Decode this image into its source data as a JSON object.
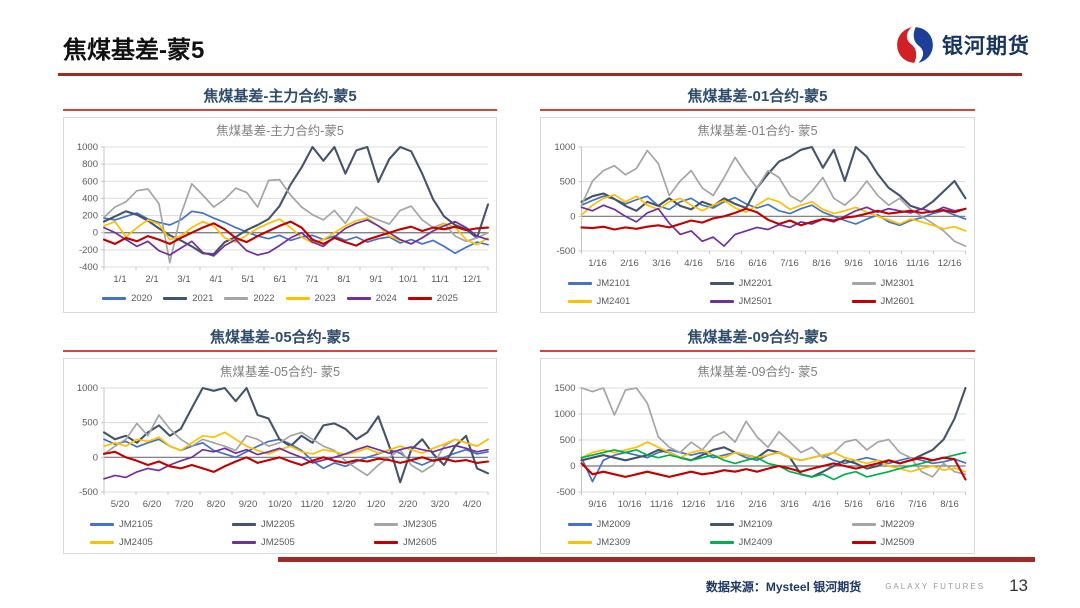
{
  "page": {
    "title": "焦煤基差-蒙5",
    "logo_text": "银河期货",
    "footer": {
      "source": "数据来源：Mysteel 银河期货",
      "brand": "GALAXY FUTURES",
      "page_number": "13"
    }
  },
  "colors": {
    "rule_dark": "#9e2b27",
    "rule_bright": "#d5463a",
    "header_navy": "#2f4d6a",
    "footer_navy": "#1f3864",
    "grid": "#dcdcdc",
    "axis": "#c4c4c4",
    "zero_line": "#737373",
    "tick_text": "#595959"
  },
  "chart_data": [
    {
      "type": "line",
      "panel_title": "焦煤基差-主力合约-蒙5",
      "inner_title": "焦煤基差-主力合约-蒙5",
      "y_min": -400,
      "y_max": 1000,
      "y_ticks": [
        1000,
        800,
        600,
        400,
        200,
        0,
        -200,
        -400
      ],
      "x_labels": [
        "1/1",
        "2/1",
        "3/1",
        "4/1",
        "5/1",
        "6/1",
        "7/1",
        "8/1",
        "9/1",
        "10/1",
        "11/1",
        "12/1"
      ],
      "legend_rows": 1,
      "series": [
        {
          "name": "2020",
          "color": "#4472C4",
          "values": [
            170,
            150,
            190,
            230,
            160,
            120,
            90,
            150,
            250,
            230,
            170,
            120,
            60,
            10,
            -40,
            -70,
            -30,
            -90,
            -50,
            -30,
            -80,
            -40,
            -90,
            -50,
            -110,
            -70,
            -50,
            -120,
            -80,
            -130,
            -90,
            -160,
            -240,
            -170,
            -110,
            -140
          ]
        },
        {
          "name": "2021",
          "color": "#44546A",
          "values": [
            130,
            190,
            250,
            210,
            140,
            50,
            -30,
            -90,
            -160,
            -240,
            -250,
            -110,
            -50,
            30,
            90,
            160,
            310,
            560,
            760,
            1000,
            840,
            1000,
            690,
            960,
            1000,
            590,
            860,
            1000,
            950,
            690,
            390,
            190,
            90,
            40,
            -60,
            330
          ]
        },
        {
          "name": "2022",
          "color": "#A5A5A5",
          "values": [
            180,
            300,
            360,
            490,
            510,
            340,
            -350,
            210,
            570,
            440,
            300,
            390,
            520,
            470,
            300,
            610,
            620,
            440,
            300,
            210,
            150,
            260,
            110,
            300,
            200,
            150,
            100,
            260,
            310,
            150,
            60,
            110,
            -40,
            -100,
            -60,
            0
          ]
        },
        {
          "name": "2023",
          "color": "#FFC000",
          "values": [
            80,
            130,
            -50,
            60,
            150,
            100,
            -80,
            -40,
            60,
            130,
            80,
            -60,
            -110,
            -30,
            50,
            110,
            160,
            60,
            -50,
            -120,
            -80,
            0,
            80,
            140,
            170,
            80,
            -40,
            -90,
            -130,
            -60,
            20,
            110,
            60,
            -80,
            -140,
            -60
          ]
        },
        {
          "name": "2024",
          "color": "#7030A0",
          "values": [
            60,
            0,
            -80,
            -160,
            -100,
            -210,
            -260,
            -180,
            -100,
            -230,
            -270,
            -150,
            -80,
            -210,
            -260,
            -230,
            -150,
            -60,
            0,
            -110,
            -160,
            -50,
            50,
            110,
            150,
            80,
            0,
            -80,
            -130,
            -60,
            20,
            80,
            130,
            60,
            -40,
            -80
          ]
        },
        {
          "name": "2025",
          "color": "#C00000",
          "values": [
            -80,
            -130,
            -60,
            -100,
            -40,
            -80,
            -130,
            -60,
            0,
            60,
            110,
            40,
            -60,
            -110,
            -40,
            20,
            80,
            130,
            60,
            -80,
            -130,
            -60,
            -110,
            -150,
            -80,
            -40,
            0,
            40,
            70,
            20,
            60,
            40,
            70,
            30,
            50,
            60
          ]
        }
      ]
    },
    {
      "type": "line",
      "panel_title": "焦煤基差-01合约-蒙5",
      "inner_title": "焦煤基差-01合约- 蒙5",
      "y_min": -500,
      "y_max": 1000,
      "y_ticks": [
        1000,
        500,
        0,
        -500
      ],
      "x_labels": [
        "1/16",
        "2/16",
        "3/16",
        "4/16",
        "5/16",
        "6/16",
        "7/16",
        "8/16",
        "9/16",
        "10/16",
        "11/16",
        "12/16"
      ],
      "legend_rows": 2,
      "series": [
        {
          "name": "JM2101",
          "color": "#4472C4",
          "values": [
            160,
            230,
            290,
            250,
            180,
            240,
            290,
            150,
            100,
            210,
            260,
            160,
            120,
            210,
            270,
            180,
            120,
            170,
            80,
            40,
            110,
            160,
            60,
            0,
            -60,
            -110,
            -40,
            20,
            -80,
            -130,
            -60,
            -20,
            40,
            80,
            20,
            -40
          ]
        },
        {
          "name": "JM2201",
          "color": "#44546A",
          "values": [
            210,
            290,
            330,
            250,
            150,
            80,
            210,
            150,
            260,
            150,
            100,
            210,
            150,
            260,
            180,
            120,
            410,
            610,
            790,
            860,
            960,
            1000,
            700,
            960,
            510,
            1000,
            860,
            610,
            410,
            300,
            150,
            100,
            210,
            360,
            510,
            260
          ]
        },
        {
          "name": "JM2301",
          "color": "#A5A5A5",
          "values": [
            160,
            510,
            660,
            730,
            600,
            690,
            950,
            760,
            300,
            510,
            660,
            410,
            300,
            560,
            850,
            610,
            410,
            660,
            560,
            300,
            210,
            360,
            560,
            260,
            160,
            300,
            510,
            300,
            160,
            260,
            100,
            0,
            -100,
            -210,
            -360,
            -430
          ]
        },
        {
          "name": "JM2401",
          "color": "#FFC000",
          "values": [
            20,
            160,
            260,
            310,
            210,
            290,
            160,
            100,
            210,
            260,
            160,
            80,
            160,
            230,
            120,
            60,
            160,
            260,
            210,
            100,
            160,
            210,
            100,
            40,
            80,
            130,
            60,
            0,
            -50,
            -110,
            -40,
            -80,
            -130,
            -180,
            -150,
            -210
          ]
        },
        {
          "name": "JM2501",
          "color": "#7030A0",
          "values": [
            130,
            80,
            160,
            100,
            0,
            -80,
            50,
            110,
            -100,
            -260,
            -210,
            -360,
            -300,
            -430,
            -260,
            -210,
            -160,
            -190,
            -120,
            -160,
            -80,
            -110,
            -40,
            -80,
            0,
            80,
            130,
            60,
            110,
            80,
            50,
            110,
            60,
            130,
            80,
            110
          ]
        },
        {
          "name": "JM2601",
          "color": "#C00000",
          "values": [
            -160,
            -170,
            -150,
            -190,
            -160,
            -180,
            -150,
            -130,
            -160,
            -110,
            -60,
            -90,
            -30,
            0,
            50,
            110,
            60,
            -50,
            -110,
            -60,
            -130,
            -80,
            -40,
            -60,
            -20,
            0,
            40,
            80,
            40,
            60,
            80,
            50,
            70,
            90,
            60,
            110
          ]
        }
      ]
    },
    {
      "type": "line",
      "panel_title": "焦煤基差-05合约-蒙5",
      "inner_title": "焦煤基差-05合约- 蒙5",
      "y_min": -500,
      "y_max": 1000,
      "y_ticks": [
        1000,
        500,
        0,
        -500
      ],
      "x_labels": [
        "5/20",
        "6/20",
        "7/20",
        "8/20",
        "9/20",
        "10/20",
        "11/20",
        "12/20",
        "1/20",
        "2/20",
        "3/20",
        "4/20"
      ],
      "legend_rows": 2,
      "series": [
        {
          "name": "JM2105",
          "color": "#4472C4",
          "values": [
            260,
            190,
            230,
            150,
            210,
            260,
            160,
            100,
            160,
            210,
            100,
            50,
            0,
            80,
            160,
            230,
            260,
            190,
            100,
            -50,
            -160,
            -80,
            -130,
            -60,
            0,
            50,
            110,
            60,
            -50,
            -110,
            -40,
            0,
            60,
            110,
            50,
            80
          ]
        },
        {
          "name": "JM2205",
          "color": "#44546A",
          "values": [
            360,
            260,
            310,
            210,
            360,
            460,
            310,
            410,
            710,
            1000,
            960,
            1100,
            810,
            1060,
            610,
            560,
            260,
            160,
            310,
            210,
            460,
            490,
            410,
            260,
            360,
            590,
            160,
            -360,
            110,
            260,
            50,
            -110,
            160,
            310,
            -160,
            -230
          ]
        },
        {
          "name": "JM2305",
          "color": "#A5A5A5",
          "values": [
            50,
            160,
            260,
            490,
            310,
            610,
            410,
            260,
            160,
            260,
            210,
            160,
            100,
            310,
            260,
            160,
            210,
            310,
            360,
            260,
            160,
            100,
            -50,
            -160,
            -260,
            -110,
            0,
            110,
            -110,
            -210,
            -110,
            160,
            260,
            210,
            160,
            260
          ]
        },
        {
          "name": "JM2405",
          "color": "#FFC000",
          "values": [
            160,
            210,
            160,
            260,
            230,
            290,
            160,
            100,
            210,
            310,
            290,
            360,
            260,
            160,
            100,
            50,
            110,
            160,
            80,
            50,
            110,
            80,
            40,
            80,
            130,
            60,
            110,
            160,
            110,
            60,
            130,
            190,
            260,
            210,
            160,
            260
          ]
        },
        {
          "name": "JM2505",
          "color": "#7030A0",
          "values": [
            -310,
            -260,
            -290,
            -210,
            -160,
            -190,
            -110,
            -50,
            0,
            110,
            80,
            130,
            60,
            110,
            40,
            80,
            130,
            60,
            0,
            -80,
            -40,
            0,
            50,
            110,
            160,
            110,
            60,
            110,
            150,
            110,
            80,
            130,
            170,
            130,
            80,
            110
          ]
        },
        {
          "name": "JM2605",
          "color": "#C00000",
          "values": [
            50,
            80,
            0,
            -50,
            -110,
            -60,
            -130,
            -160,
            -110,
            -160,
            -210,
            -130,
            -60,
            0,
            -80,
            -40,
            0,
            -60,
            -110,
            -50,
            0,
            -50,
            -80,
            -40,
            -60,
            -20,
            -40,
            -80,
            -40,
            0,
            -50,
            -20,
            -60,
            -40,
            -80,
            -60
          ]
        }
      ]
    },
    {
      "type": "line",
      "panel_title": "焦煤基差-09合约-蒙5",
      "inner_title": "焦煤基差-09合约- 蒙5",
      "y_min": -500,
      "y_max": 1500,
      "y_ticks": [
        1500,
        1000,
        500,
        0,
        -500
      ],
      "x_labels": [
        "9/16",
        "10/16",
        "11/16",
        "12/16",
        "1/16",
        "2/16",
        "3/16",
        "4/16",
        "5/16",
        "6/16",
        "7/16",
        "8/16"
      ],
      "legend_rows": 2,
      "series": [
        {
          "name": "JM2009",
          "color": "#4472C4",
          "values": [
            160,
            -300,
            110,
            210,
            260,
            210,
            160,
            260,
            310,
            260,
            210,
            260,
            160,
            210,
            260,
            160,
            110,
            210,
            260,
            160,
            110,
            160,
            210,
            110,
            50,
            110,
            160,
            110,
            50,
            110,
            160,
            110,
            50,
            80,
            130,
            60
          ]
        },
        {
          "name": "JM2109",
          "color": "#44546A",
          "values": [
            110,
            160,
            210,
            160,
            110,
            160,
            210,
            310,
            260,
            160,
            110,
            210,
            310,
            360,
            260,
            210,
            160,
            310,
            260,
            160,
            -160,
            -210,
            -110,
            0,
            110,
            50,
            -50,
            0,
            110,
            50,
            110,
            210,
            310,
            510,
            910,
            1500
          ]
        },
        {
          "name": "JM2209",
          "color": "#A5A5A5",
          "values": [
            1500,
            1430,
            1550,
            980,
            1460,
            1600,
            1210,
            560,
            360,
            260,
            460,
            310,
            560,
            660,
            460,
            860,
            560,
            360,
            660,
            460,
            260,
            360,
            160,
            260,
            460,
            510,
            310,
            460,
            510,
            260,
            160,
            -110,
            -210,
            50,
            -110,
            -160
          ]
        },
        {
          "name": "JM2309",
          "color": "#FFC000",
          "values": [
            160,
            260,
            310,
            260,
            310,
            360,
            460,
            360,
            260,
            160,
            260,
            310,
            210,
            160,
            260,
            210,
            160,
            210,
            260,
            160,
            110,
            160,
            210,
            260,
            160,
            110,
            50,
            110,
            0,
            -50,
            -110,
            -50,
            0,
            -80,
            -40,
            -110
          ]
        },
        {
          "name": "JM2409",
          "color": "#00B050",
          "values": [
            160,
            210,
            260,
            310,
            260,
            310,
            210,
            160,
            210,
            160,
            110,
            160,
            210,
            110,
            50,
            110,
            160,
            50,
            0,
            -110,
            -160,
            -210,
            -160,
            -260,
            -160,
            -110,
            -210,
            -160,
            -110,
            -50,
            0,
            50,
            110,
            160,
            210,
            260
          ]
        },
        {
          "name": "JM2509",
          "color": "#C00000",
          "values": [
            50,
            -160,
            -110,
            -160,
            -210,
            -160,
            -110,
            -160,
            -210,
            -160,
            -110,
            -160,
            -130,
            -80,
            -110,
            -60,
            -110,
            -50,
            0,
            -50,
            -110,
            -50,
            0,
            50,
            0,
            -50,
            0,
            50,
            110,
            50,
            110,
            160,
            110,
            160,
            130,
            -260
          ]
        }
      ]
    }
  ]
}
